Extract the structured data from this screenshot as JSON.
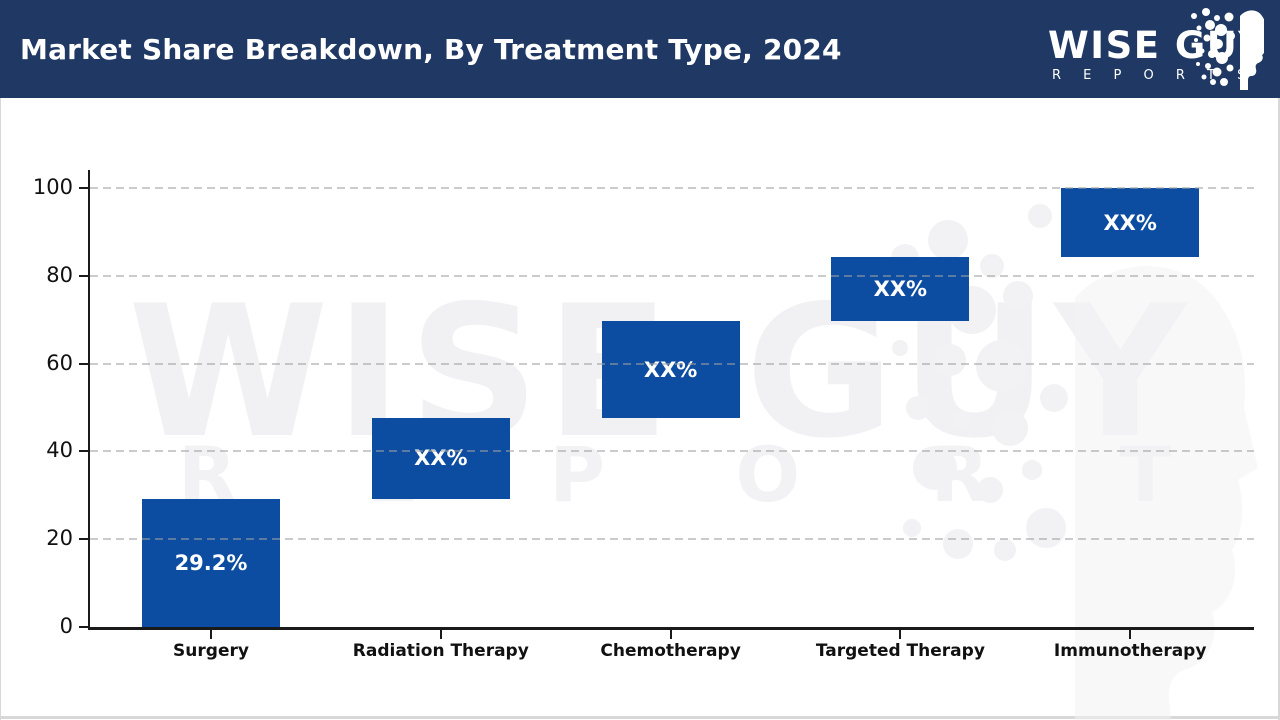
{
  "header": {
    "title": "Market Share Breakdown, By Treatment Type, 2024",
    "logo": {
      "line1": "WISE GUY",
      "line2": "R E P O R T S"
    }
  },
  "watermark": {
    "line1": "WISE GUY",
    "line2": "R E P O R T S"
  },
  "chart_data": {
    "type": "bar",
    "subtype": "waterfall",
    "title": "Market Share Breakdown, By Treatment Type, 2024",
    "categories": [
      "Surgery",
      "Radiation Therapy",
      "Chemotherapy",
      "Targeted Therapy",
      "Immunotherapy"
    ],
    "bars": [
      {
        "category": "Surgery",
        "start": 0,
        "end": 29.2,
        "label": "29.2%"
      },
      {
        "category": "Radiation Therapy",
        "start": 29.2,
        "end": 47.6,
        "label": "XX%"
      },
      {
        "category": "Chemotherapy",
        "start": 47.6,
        "end": 69.7,
        "label": "XX%"
      },
      {
        "category": "Targeted Therapy",
        "start": 69.7,
        "end": 84.2,
        "label": "XX%"
      },
      {
        "category": "Immunotherapy",
        "start": 84.2,
        "end": 100,
        "label": "XX%"
      }
    ],
    "y_ticks": [
      0,
      20,
      40,
      60,
      80,
      100
    ],
    "ylim": [
      0,
      105
    ],
    "xlabel": "",
    "ylabel": "",
    "legend": "none",
    "grid": "horizontal-dashed-above-bars",
    "bar_color": "#0c4da2",
    "bar_label_color": "#ffffff"
  },
  "colors": {
    "header_bg": "#1f3864",
    "bar": "#0c4da2",
    "axis": "#1a1a1a",
    "gridline": "#a0a0a0",
    "watermark": "#f1f1f4",
    "edge_trim": "#d8d8d8"
  }
}
